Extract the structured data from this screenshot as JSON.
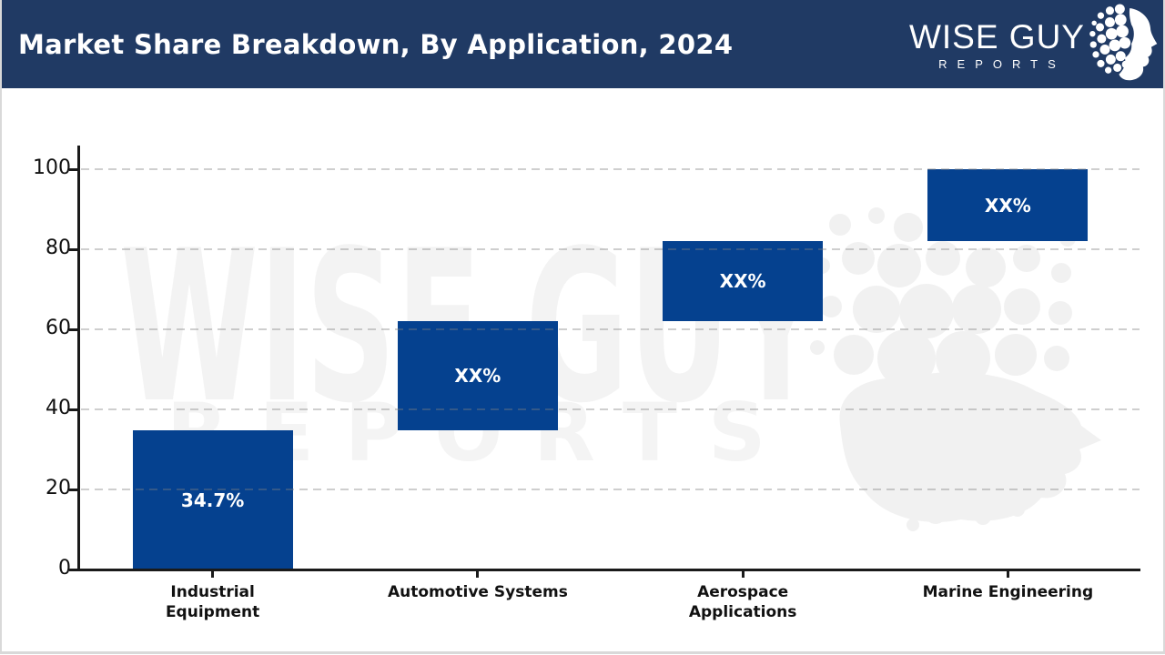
{
  "header": {
    "title": "Market Share Breakdown, By Application, 2024",
    "logo": {
      "name": "WISE GUY",
      "sub": "REPORTS"
    }
  },
  "watermark": {
    "name": "WISE GUY",
    "sub": "REPORTS"
  },
  "chart_data": {
    "type": "bar",
    "variant": "waterfall",
    "title": "Market Share Breakdown, By Application, 2024",
    "categories": [
      "Industrial Equipment",
      "Automotive Systems",
      "Aerospace Applications",
      "Marine Engineering"
    ],
    "category_display": [
      "Industrial\nEquipment",
      "Automotive Systems",
      "Aerospace\nApplications",
      "Marine Engineering"
    ],
    "bars": [
      {
        "category": "Industrial Equipment",
        "start": 0,
        "end": 34.7,
        "value": 34.7,
        "label": "34.7%"
      },
      {
        "category": "Automotive Systems",
        "start": 34.7,
        "end": 62,
        "value": 27.3,
        "label": "XX%"
      },
      {
        "category": "Aerospace Applications",
        "start": 62,
        "end": 82,
        "value": 20,
        "label": "XX%"
      },
      {
        "category": "Marine Engineering",
        "start": 82,
        "end": 100,
        "value": 18,
        "label": "XX%"
      }
    ],
    "xlabel": "",
    "ylabel": "",
    "y_ticks": [
      0,
      20,
      40,
      60,
      80,
      100
    ],
    "ylim": [
      0,
      107
    ],
    "grid": "horizontal-dashed",
    "legend": "none",
    "bar_color": "#05418f",
    "bar_label_color": "#ffffff",
    "axis_color": "#1a1a1a"
  },
  "colors": {
    "header_bg": "#203a64",
    "bar": "#05418f",
    "watermark": "#f3f3f3",
    "border": "#d9d9d9"
  }
}
